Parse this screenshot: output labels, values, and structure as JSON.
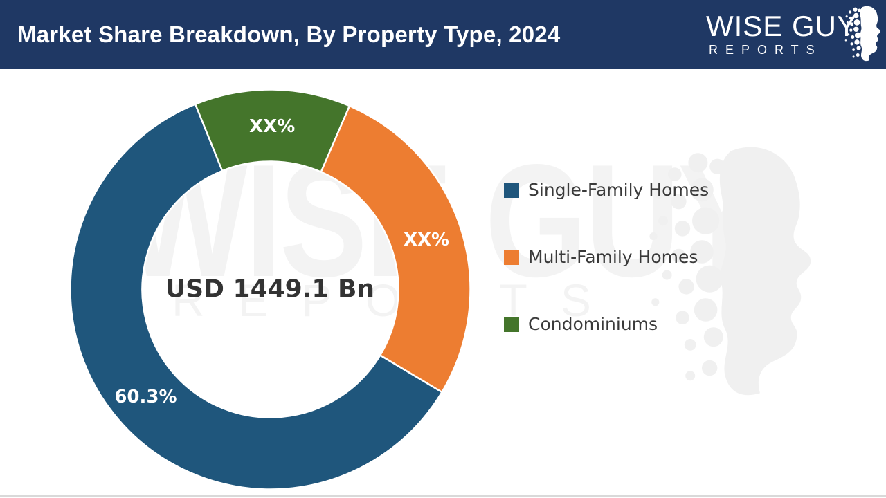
{
  "header": {
    "title": "Market Share Breakdown, By Property Type, 2024",
    "logo": {
      "brand_top": "WISE GUY",
      "brand_bottom": "REPORTS"
    }
  },
  "watermark": {
    "text_large": "WISE GUY",
    "text_small": "REPORTS"
  },
  "chart_data": {
    "type": "pie",
    "subtype": "donut",
    "title": "Market Share Breakdown, By Property Type, 2024",
    "center_label": "USD 1449.1 Bn",
    "legend_position": "right",
    "start_angle_deg": 120.9,
    "draw_order": [
      0,
      2,
      1
    ],
    "segments": [
      {
        "name": "Single-Family Homes",
        "value_pct": 60.3,
        "display_label": "60.3%",
        "color": "#1F567C"
      },
      {
        "name": "Multi-Family Homes",
        "value_pct": 27.1,
        "display_label": "XX%",
        "color": "#ED7D31"
      },
      {
        "name": "Condominiums",
        "value_pct": 12.6,
        "display_label": "XX%",
        "color": "#44752B"
      }
    ]
  }
}
